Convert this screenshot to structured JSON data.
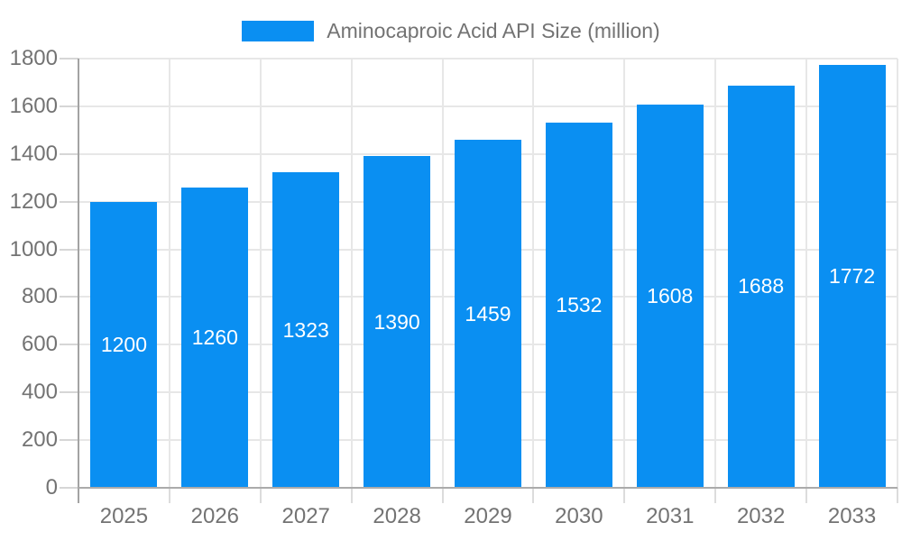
{
  "legend": {
    "label": "Aminocaproic Acid API Size (million)"
  },
  "chart_data": {
    "type": "bar",
    "title": "Aminocaproic Acid API Size (million)",
    "categories": [
      "2025",
      "2026",
      "2027",
      "2028",
      "2029",
      "2030",
      "2031",
      "2032",
      "2033"
    ],
    "values": [
      1200,
      1260,
      1323,
      1390,
      1459,
      1532,
      1608,
      1688,
      1772
    ],
    "series_name": "Aminocaproic Acid API Size (million)",
    "xlabel": "",
    "ylabel": "",
    "ylim": [
      0,
      1800
    ],
    "yticks": [
      0,
      200,
      400,
      600,
      800,
      1000,
      1200,
      1400,
      1600,
      1800
    ],
    "grid": true,
    "legend_position": "top",
    "value_labels": "inside-center",
    "colors": {
      "bar": "#0a8ff2",
      "value_label": "#ffffff",
      "axis_label": "#737373",
      "gridline": "#e7e7e7",
      "axis_line": "#a3a3a3",
      "background": "#ffffff"
    }
  }
}
